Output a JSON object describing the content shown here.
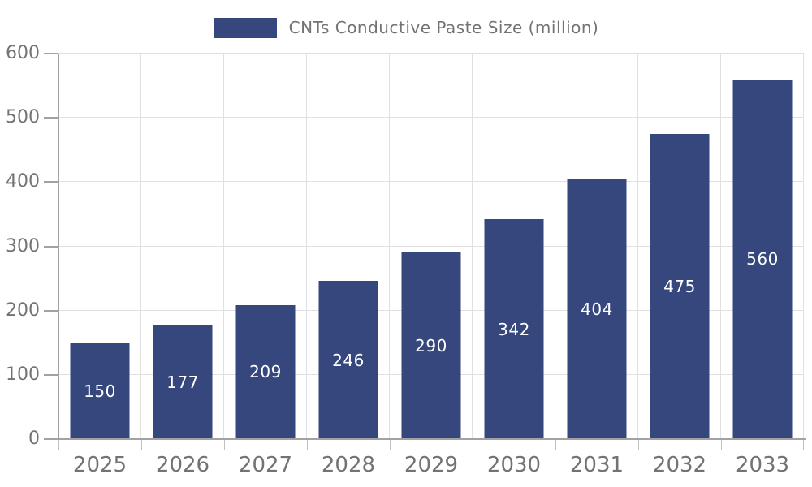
{
  "legend": {
    "label": "CNTs Conductive Paste Size (million)"
  },
  "chart_data": {
    "type": "bar",
    "title": "CNTs Conductive Paste Size (million)",
    "categories": [
      "2025",
      "2026",
      "2027",
      "2028",
      "2029",
      "2030",
      "2031",
      "2032",
      "2033"
    ],
    "values": [
      150,
      177,
      209,
      246,
      290,
      342,
      404,
      475,
      560
    ],
    "xlabel": "",
    "ylabel": "",
    "ylim": [
      0,
      600
    ],
    "yticks": [
      0,
      100,
      200,
      300,
      400,
      500,
      600
    ],
    "grid": "horizontal and vertical gridlines on",
    "legend_position": "top-center",
    "bar_label_position": "inside-center"
  },
  "colors": {
    "bar": "#35477d",
    "bar_label": "#ffffff",
    "grid": "#e0e0e0",
    "axis": "#a2a2a2",
    "tick": "#c0c0c0",
    "text": "#737373",
    "background": "#ffffff"
  }
}
